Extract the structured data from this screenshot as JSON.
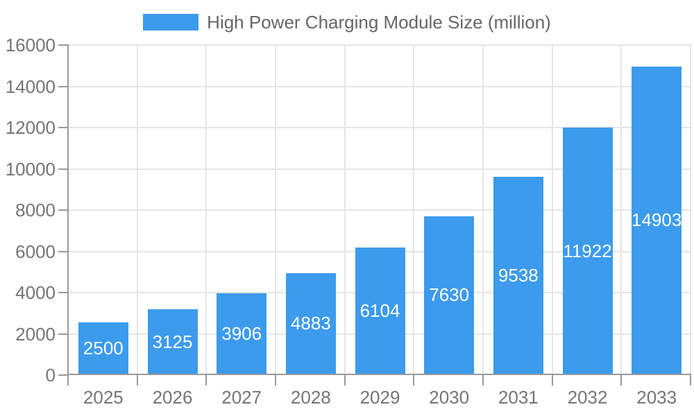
{
  "legend": {
    "label": "High Power Charging Module Size (million)"
  },
  "colors": {
    "bar": "#3C9BEC",
    "bar_label": "#ffffff",
    "grid": "#E5E5E5",
    "axis": "#999999",
    "tick": "#999999",
    "tick_label": "#757575",
    "legend_text": "#666666",
    "background": "#ffffff"
  },
  "chart_data": {
    "type": "bar",
    "title": "High Power Charging Module Size (million)",
    "categories": [
      "2025",
      "2026",
      "2027",
      "2028",
      "2029",
      "2030",
      "2031",
      "2032",
      "2033"
    ],
    "series": [
      {
        "name": "High Power Charging Module Size (million)",
        "values": [
          2500,
          3125,
          3906,
          4883,
          6104,
          7630,
          9538,
          11922,
          14903
        ]
      }
    ],
    "value_labels": {
      "position": "inside-center",
      "color": "#ffffff"
    },
    "xlabel": "",
    "ylabel": "",
    "ylim": [
      0,
      16000
    ],
    "ytick_step": 2000,
    "ytick_labels": [
      "0",
      "2000",
      "4000",
      "6000",
      "8000",
      "10000",
      "12000",
      "14000",
      "16000"
    ],
    "grid": true,
    "legend_position": "top"
  }
}
